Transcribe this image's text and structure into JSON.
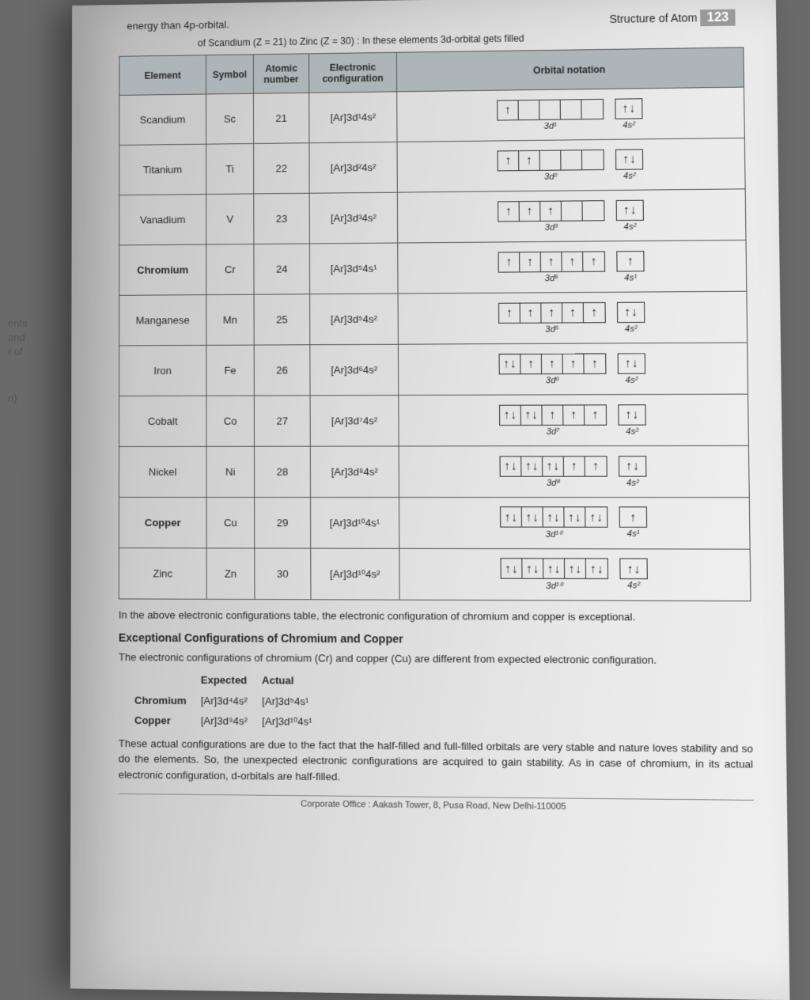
{
  "side": {
    "l1": "ents",
    "l2": "and",
    "l3": "r of",
    "l4": "n)"
  },
  "header": {
    "left": "energy than 4p-orbital.",
    "title_right": "Structure of Atom",
    "page": "123",
    "sub": "of Scandium (Z = 21) to Zinc (Z = 30) : In these elements 3d-orbital gets filled"
  },
  "columns": [
    "Element",
    "Symbol",
    "Atomic number",
    "Electronic configuration",
    "Orbital notation"
  ],
  "d_label": "3d",
  "s_label": "4s",
  "rows": [
    {
      "el": "Scandium",
      "sym": "Sc",
      "z": "21",
      "cfg": "[Ar]3d¹4s²",
      "d": [
        "u",
        "",
        "",
        "",
        ""
      ],
      "s": [
        "ud"
      ],
      "dl": "3d¹",
      "sl": "4s²",
      "bold": false
    },
    {
      "el": "Titanium",
      "sym": "Ti",
      "z": "22",
      "cfg": "[Ar]3d²4s²",
      "d": [
        "u",
        "u",
        "",
        "",
        ""
      ],
      "s": [
        "ud"
      ],
      "dl": "3d²",
      "sl": "4s²",
      "bold": false
    },
    {
      "el": "Vanadium",
      "sym": "V",
      "z": "23",
      "cfg": "[Ar]3d³4s²",
      "d": [
        "u",
        "u",
        "u",
        "",
        ""
      ],
      "s": [
        "ud"
      ],
      "dl": "3d³",
      "sl": "4s²",
      "bold": false
    },
    {
      "el": "Chromium",
      "sym": "Cr",
      "z": "24",
      "cfg": "[Ar]3d⁵4s¹",
      "d": [
        "u",
        "u",
        "u",
        "u",
        "u"
      ],
      "s": [
        "u"
      ],
      "dl": "3d⁵",
      "sl": "4s¹",
      "bold": true
    },
    {
      "el": "Manganese",
      "sym": "Mn",
      "z": "25",
      "cfg": "[Ar]3d⁵4s²",
      "d": [
        "u",
        "u",
        "u",
        "u",
        "u"
      ],
      "s": [
        "ud"
      ],
      "dl": "3d⁵",
      "sl": "4s²",
      "bold": false
    },
    {
      "el": "Iron",
      "sym": "Fe",
      "z": "26",
      "cfg": "[Ar]3d⁶4s²",
      "d": [
        "ud",
        "u",
        "u",
        "u",
        "u"
      ],
      "s": [
        "ud"
      ],
      "dl": "3d⁶",
      "sl": "4s²",
      "bold": false
    },
    {
      "el": "Cobalt",
      "sym": "Co",
      "z": "27",
      "cfg": "[Ar]3d⁷4s²",
      "d": [
        "ud",
        "ud",
        "u",
        "u",
        "u"
      ],
      "s": [
        "ud"
      ],
      "dl": "3d⁷",
      "sl": "4s²",
      "bold": false
    },
    {
      "el": "Nickel",
      "sym": "Ni",
      "z": "28",
      "cfg": "[Ar]3d⁸4s²",
      "d": [
        "ud",
        "ud",
        "ud",
        "u",
        "u"
      ],
      "s": [
        "ud"
      ],
      "dl": "3d⁸",
      "sl": "4s²",
      "bold": false
    },
    {
      "el": "Copper",
      "sym": "Cu",
      "z": "29",
      "cfg": "[Ar]3d¹⁰4s¹",
      "d": [
        "ud",
        "ud",
        "ud",
        "ud",
        "ud"
      ],
      "s": [
        "u"
      ],
      "dl": "3d¹⁰",
      "sl": "4s¹",
      "bold": true
    },
    {
      "el": "Zinc",
      "sym": "Zn",
      "z": "30",
      "cfg": "[Ar]3d¹⁰4s²",
      "d": [
        "ud",
        "ud",
        "ud",
        "ud",
        "ud"
      ],
      "s": [
        "ud"
      ],
      "dl": "3d¹⁰",
      "sl": "4s²",
      "bold": false
    }
  ],
  "para1": "In the above electronic configurations table, the electronic configuration of chromium and copper is exceptional.",
  "h1": "Exceptional Configurations of Chromium and Copper",
  "para2": "The electronic configurations of chromium (Cr) and copper (Cu) are different from expected electronic configuration.",
  "exp_table": {
    "cols": [
      "",
      "Expected",
      "Actual"
    ],
    "rows": [
      [
        "Chromium",
        "[Ar]3d⁴4s²",
        "[Ar]3d⁵4s¹"
      ],
      [
        "Copper",
        "[Ar]3d⁹4s²",
        "[Ar]3d¹⁰4s¹"
      ]
    ]
  },
  "para3": "These actual configurations are due to the fact that the half-filled and full-filled orbitals are very stable and nature loves stability and so do the elements. So, the unexpected electronic configurations are acquired to gain stability. As in case of chromium, in its actual electronic configuration, d-orbitals are half-filled.",
  "footer": "Corporate Office : Aakash Tower, 8, Pusa Road, New Delhi-110005"
}
